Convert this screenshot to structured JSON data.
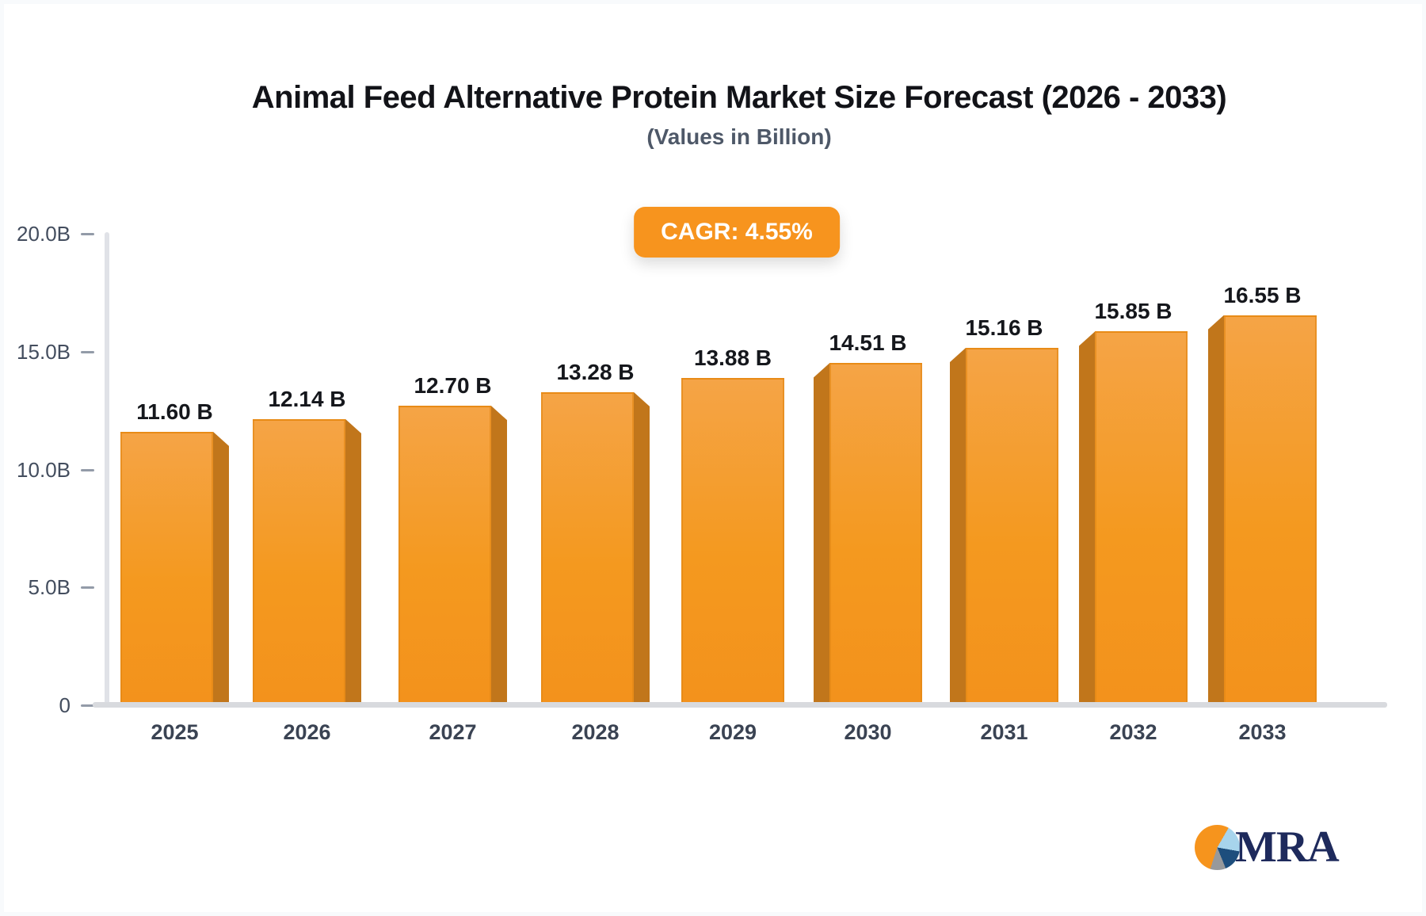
{
  "header": {
    "title": "Animal Feed Alternative Protein Market Size Forecast (2026 - 2033)",
    "subtitle": "(Values in Billion)"
  },
  "badge": {
    "label": "CAGR: 4.55%",
    "color": "#F7941E"
  },
  "chart_data": {
    "type": "bar",
    "title": "Animal Feed Alternative Protein Market Size Forecast (2026 - 2033)",
    "subtitle": "(Values in Billion)",
    "annotation": "CAGR: 4.55%",
    "categories": [
      "2025",
      "2026",
      "2027",
      "2028",
      "2029",
      "2030",
      "2031",
      "2032",
      "2033"
    ],
    "values": [
      11.6,
      12.14,
      12.7,
      13.28,
      13.88,
      14.51,
      15.16,
      15.85,
      16.55
    ],
    "value_labels": [
      "11.60 B",
      "12.14 B",
      "12.70 B",
      "13.28 B",
      "13.88 B",
      "14.51 B",
      "15.16 B",
      "15.85 B",
      "16.55 B"
    ],
    "ylim": [
      0,
      20
    ],
    "y_ticks": [
      {
        "label": "20.0B",
        "value": 20
      },
      {
        "label": "15.0B",
        "value": 15
      },
      {
        "label": "10.0B",
        "value": 10
      },
      {
        "label": "5.0B",
        "value": 5
      },
      {
        "label": "0",
        "value": 0
      }
    ],
    "grid": false,
    "legend": false,
    "bar_colors": {
      "face_top": "#F5A446",
      "face_bottom": "#F3921C",
      "side": "#C1761B",
      "border": "#E28715"
    }
  },
  "logo": {
    "text": "MRA",
    "pie_colors": [
      "#F6941D",
      "#A7D4EC",
      "#1D4E7D",
      "#97999B"
    ]
  }
}
